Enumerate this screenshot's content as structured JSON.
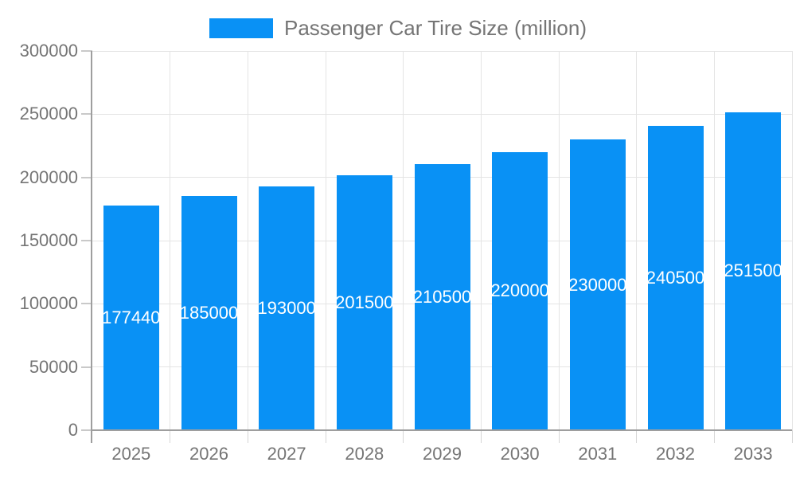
{
  "chart_data": {
    "type": "bar",
    "title": "Passenger Car Tire Size (million)",
    "categories": [
      "2025",
      "2026",
      "2027",
      "2028",
      "2029",
      "2030",
      "2031",
      "2032",
      "2033"
    ],
    "values": [
      177440,
      185000,
      193000,
      201500,
      210500,
      220000,
      230000,
      240500,
      251500
    ],
    "value_labels": [
      "177440",
      "185000",
      "193000",
      "201500",
      "210500",
      "220000",
      "230000",
      "240500",
      "251500"
    ],
    "series": [
      {
        "name": "Passenger Car Tire Size (million)",
        "values": [
          177440,
          185000,
          193000,
          201500,
          210500,
          220000,
          230000,
          240500,
          251500
        ]
      }
    ],
    "xlabel": "",
    "ylabel": "",
    "ylim": [
      0,
      300000
    ],
    "ytick_step": 50000,
    "ytick_labels": [
      "0",
      "50000",
      "100000",
      "150000",
      "200000",
      "250000",
      "300000"
    ],
    "grid": true,
    "legend_position": "top"
  },
  "colors": {
    "bar": "#0991f5",
    "grid": "#e4e4e4",
    "axis": "#9e9e9e",
    "y_tick": "#c9c9c9",
    "x_tick": "#d6d6d6",
    "label_text": "#757575",
    "value_text": "#ffffff",
    "background": "#ffffff"
  }
}
